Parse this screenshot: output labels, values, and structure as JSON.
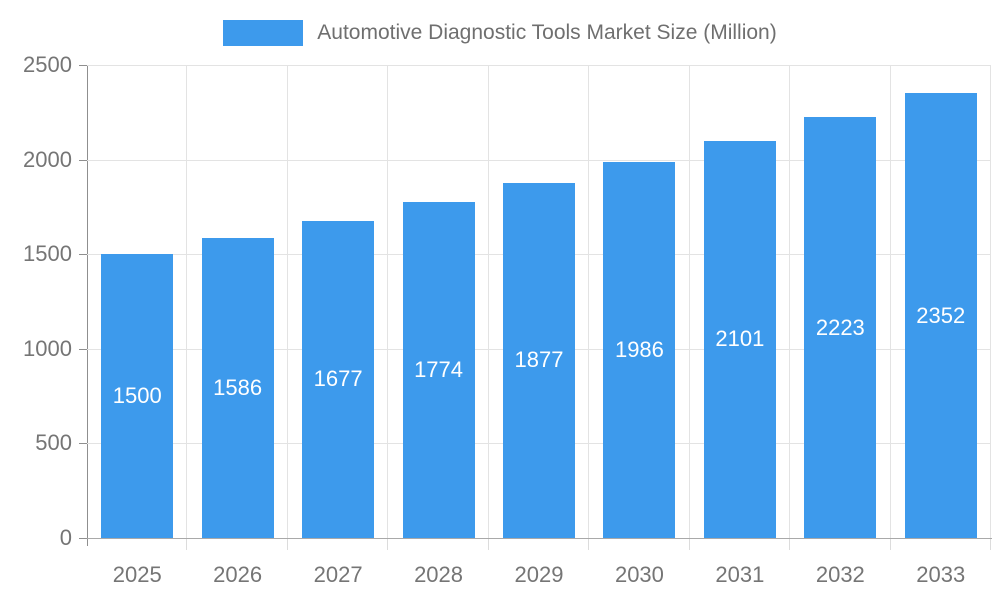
{
  "chart_data": {
    "type": "bar",
    "title": "Automotive Diagnostic Tools Market Size (Million)",
    "categories": [
      "2025",
      "2026",
      "2027",
      "2028",
      "2029",
      "2030",
      "2031",
      "2032",
      "2033"
    ],
    "values": [
      1500,
      1586,
      1677,
      1774,
      1877,
      1986,
      2101,
      2223,
      2352
    ],
    "yticks": [
      0,
      500,
      1000,
      1500,
      2000,
      2500
    ],
    "xlabel": "",
    "ylabel": "",
    "ylim": [
      0,
      2500
    ],
    "grid": true,
    "legend_position": "top",
    "value_labels": "inside-center-white"
  },
  "legend": {
    "label": "Automotive Diagnostic Tools Market Size (Million)"
  },
  "colors": {
    "bar": "#3D9AEC",
    "gridline": "#E3E3E3",
    "axis": "#8F8F8F",
    "tick_label": "#757575",
    "legend_text": "#6F6F6F",
    "value_label": "#FFFFFF",
    "background": "#FFFFFF"
  }
}
